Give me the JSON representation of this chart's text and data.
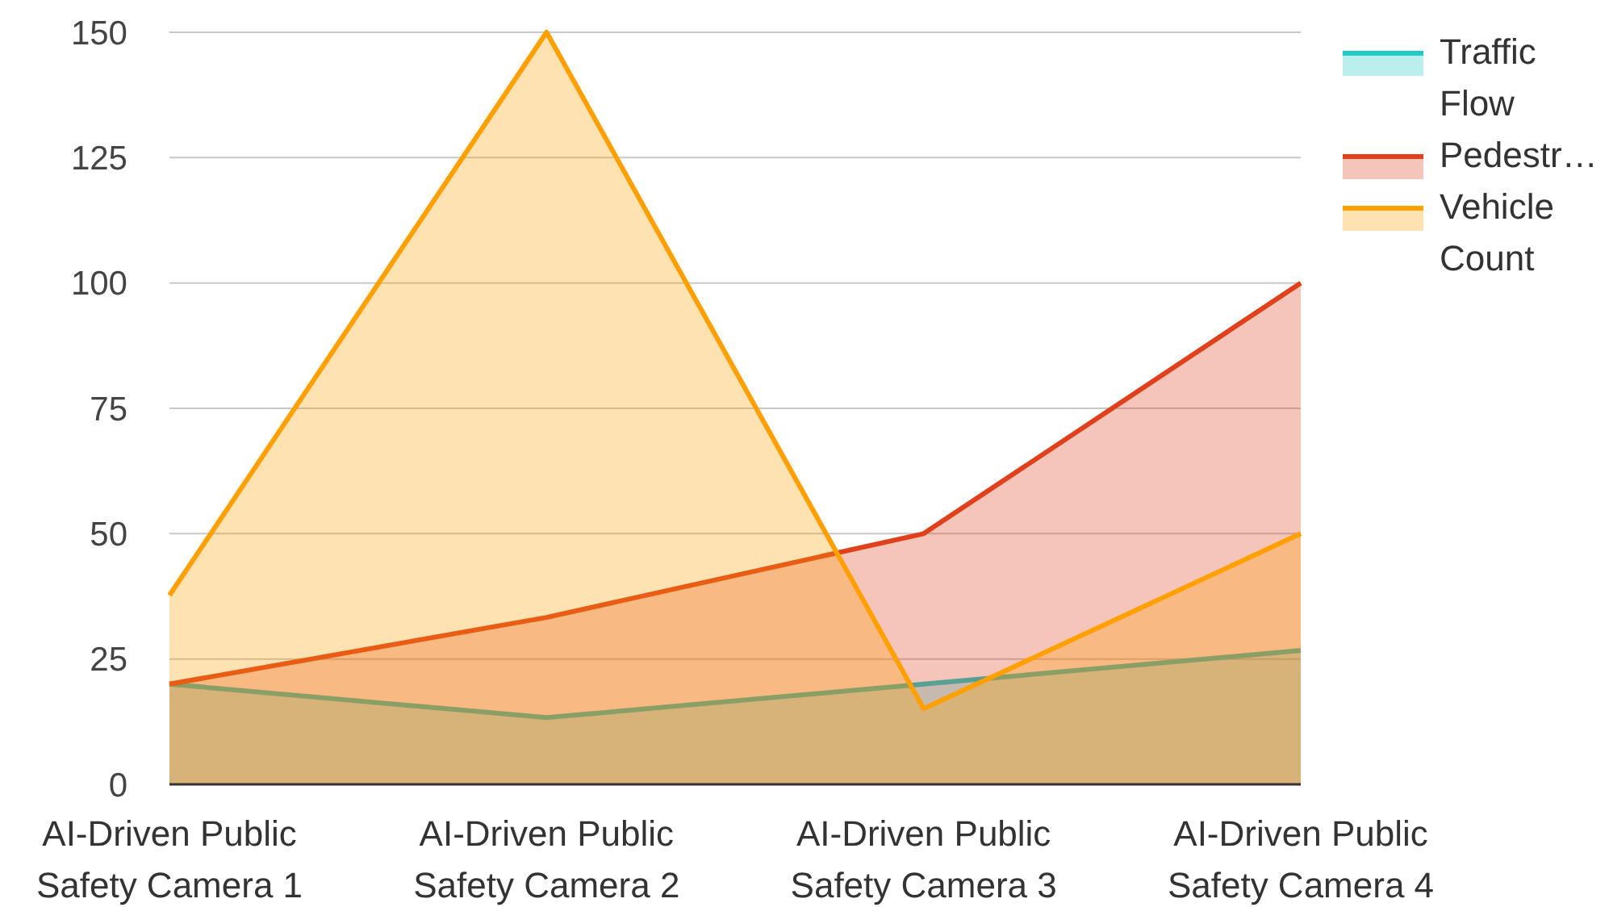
{
  "chart_data": {
    "type": "area",
    "categories": [
      "AI-Driven Public Safety Camera 1",
      "AI-Driven Public Safety Camera 2",
      "AI-Driven Public Safety Camera 3",
      "AI-Driven Public Safety Camera 4"
    ],
    "series": [
      {
        "name": "Traffic Flow",
        "color": "#1ecbc8",
        "values": [
          20,
          13.3,
          20,
          26.7
        ]
      },
      {
        "name": "Pedestr…",
        "color": "#e0401c",
        "values": [
          20,
          33.3,
          50,
          100
        ]
      },
      {
        "name": "Vehicle Count",
        "color": "#ffa000",
        "values": [
          37.7,
          150,
          15.1,
          50
        ]
      }
    ],
    "ylim": [
      0,
      150
    ],
    "yticks": [
      0,
      25,
      50,
      75,
      100,
      125,
      150
    ],
    "grid": "y",
    "legend": "right"
  }
}
